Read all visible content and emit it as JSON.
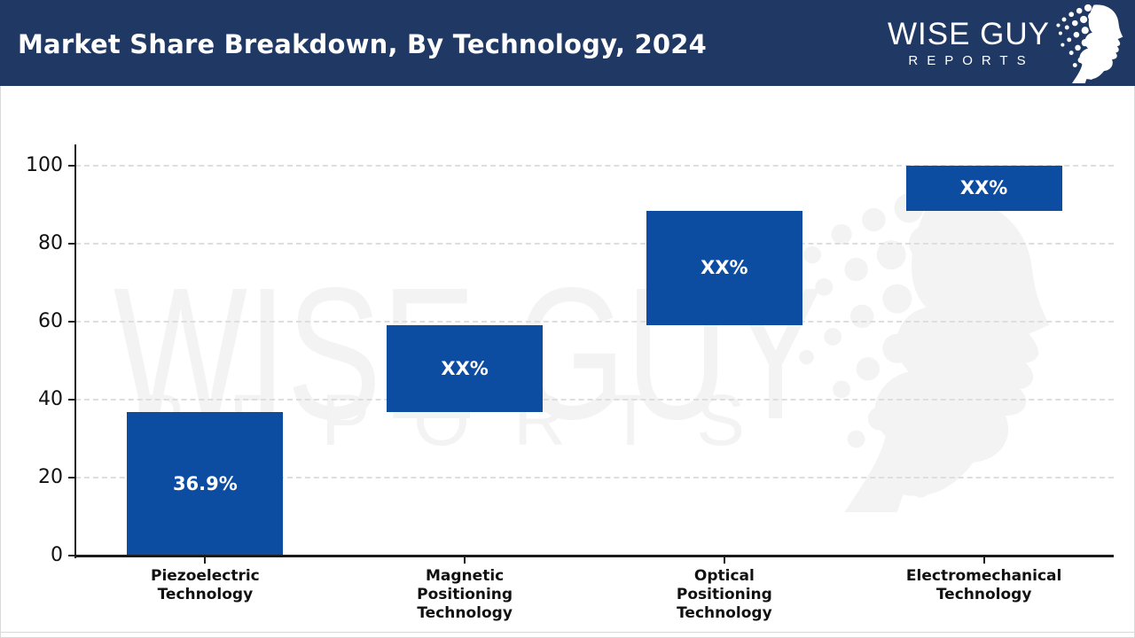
{
  "header": {
    "title": "Market Share Breakdown, By Technology, 2024",
    "brand": {
      "name": "WISE GUY",
      "tagline": "REPORTS"
    }
  },
  "watermark": {
    "brand": "WISE GUY",
    "tagline": "REPORTS"
  },
  "colors": {
    "header_bg": "#1f3864",
    "bar": "#0d4da1",
    "bar_label": "#ffffff",
    "grid": "#dedede",
    "axis": "#1a1a1a",
    "tick_label": "#111111",
    "watermark": "#f3f3f3"
  },
  "chart_data": {
    "type": "bar",
    "variant": "stacked-waterfall",
    "title": "Market Share Breakdown, By Technology, 2024",
    "categories": [
      "Piezoelectric Technology",
      "Magnetic Positioning Technology",
      "Optical Positioning Technology",
      "Electromechanical Technology"
    ],
    "category_label_lines": [
      [
        "Piezoelectric",
        "Technology"
      ],
      [
        "Magnetic",
        "Positioning",
        "Technology"
      ],
      [
        "Optical",
        "Positioning",
        "Technology"
      ],
      [
        "Electromechanical",
        "Technology"
      ]
    ],
    "segments": [
      {
        "category": "Piezoelectric Technology",
        "start": 0,
        "end": 36.9,
        "value": 36.9,
        "label": "36.9%"
      },
      {
        "category": "Magnetic Positioning Technology",
        "start": 36.9,
        "end": 59.1,
        "value": 22.2,
        "label": "XX%"
      },
      {
        "category": "Optical Positioning Technology",
        "start": 59.1,
        "end": 88.5,
        "value": 29.4,
        "label": "XX%"
      },
      {
        "category": "Electromechanical Technology",
        "start": 88.5,
        "end": 100.0,
        "value": 11.5,
        "label": "XX%"
      }
    ],
    "xlabel": "",
    "ylabel": "",
    "ylim": [
      0,
      100
    ],
    "yticks": [
      0,
      20,
      40,
      60,
      80,
      100
    ],
    "grid": "horizontal dashed",
    "legend": "none"
  }
}
